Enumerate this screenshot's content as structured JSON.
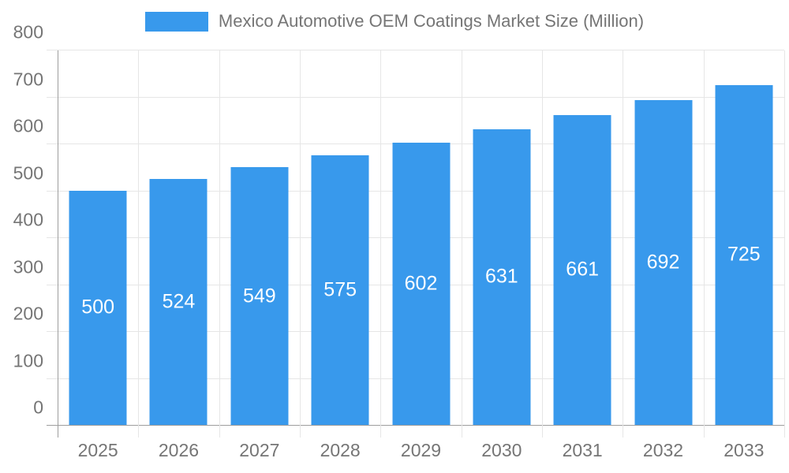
{
  "legend": {
    "label": "Mexico Automotive OEM Coatings Market Size (Million)"
  },
  "chart_data": {
    "type": "bar",
    "title": "Mexico Automotive OEM Coatings Market Size (Million)",
    "categories": [
      "2025",
      "2026",
      "2027",
      "2028",
      "2029",
      "2030",
      "2031",
      "2032",
      "2033"
    ],
    "values": [
      500,
      524,
      549,
      575,
      602,
      631,
      661,
      692,
      725
    ],
    "xlabel": "",
    "ylabel": "",
    "ylim": [
      0,
      800
    ],
    "ytick_interval": 100,
    "yticks": [
      0,
      100,
      200,
      300,
      400,
      500,
      600,
      700,
      800
    ],
    "grid": true,
    "legend_position": "top-center",
    "value_labels": "inside-middle",
    "colors": {
      "bar": "#3899EC",
      "value_label": "#ffffff",
      "axis_text": "#757575",
      "gridline": "#e6e6e6",
      "axis_line": "#9e9e9e",
      "background": "#ffffff"
    }
  }
}
